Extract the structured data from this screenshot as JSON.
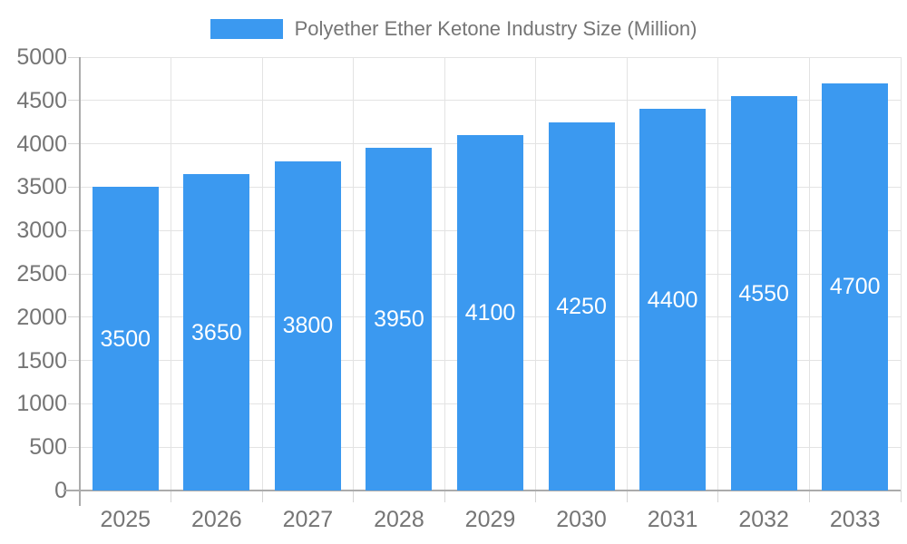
{
  "chart_data": {
    "type": "bar",
    "legend": {
      "label": "Polyether Ether Ketone Industry Size (Million)",
      "position": "top-center"
    },
    "categories": [
      "2025",
      "2026",
      "2027",
      "2028",
      "2029",
      "2030",
      "2031",
      "2032",
      "2033"
    ],
    "series": [
      {
        "name": "Polyether Ether Ketone Industry Size (Million)",
        "values": [
          3500,
          3650,
          3800,
          3950,
          4100,
          4250,
          4400,
          4550,
          4700
        ]
      }
    ],
    "bar_labels": [
      "3500",
      "3650",
      "3800",
      "3950",
      "4100",
      "4250",
      "4400",
      "4550",
      "4700"
    ],
    "xlabel": "",
    "ylabel": "",
    "ylim": [
      0,
      5000
    ],
    "yticks": [
      0,
      500,
      1000,
      1500,
      2000,
      2500,
      3000,
      3500,
      4000,
      4500,
      5000
    ],
    "grid": true,
    "colors": {
      "bar": "#3b99f0",
      "bar_label_text": "#ffffff",
      "axis_text": "#757575",
      "legend_text": "#757575",
      "gridline": "#e3e3e3",
      "axis_line": "#ababab",
      "tick_line": "#d6d6d6",
      "background": "#ffffff"
    }
  }
}
